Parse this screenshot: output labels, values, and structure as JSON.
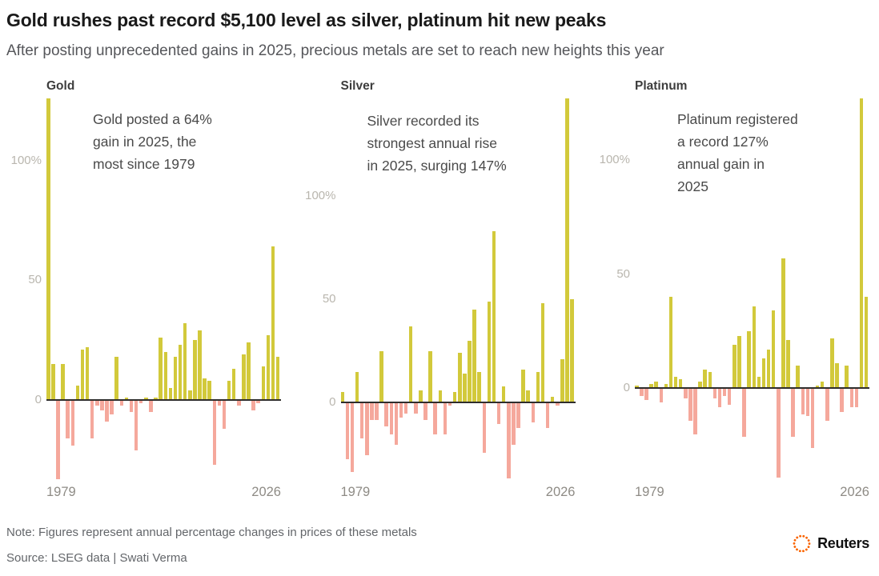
{
  "header": {
    "title": "Gold rushes past record $5,100 level as silver, platinum hit new peaks",
    "subtitle": "After posting unprecedented gains in 2025, precious metals are set to reach new heights this year"
  },
  "footer": {
    "note": "Note: Figures represent annual percentage changes in prices of these metals",
    "source": "Source: LSEG data | Swati Verma",
    "logo_text": "Reuters"
  },
  "colors": {
    "positive_bar": "#d2c93b",
    "negative_bar": "#f5a89c",
    "zero_line": "#2f2e2c",
    "tick_label": "#b9b6ae",
    "reuters_orange": "#fa6400"
  },
  "chart_data": [
    {
      "type": "bar",
      "title": "Gold",
      "annotation": "Gold posted a 64% gain in 2025, the most since 1979",
      "unit": "%",
      "x_start": 1979,
      "x_end": 2026,
      "x_labels": [
        "1979",
        "2026"
      ],
      "yticks": [
        {
          "value": 100,
          "label": "100%"
        },
        {
          "value": 50,
          "label": "50"
        },
        {
          "value": 0,
          "label": "0"
        }
      ],
      "ylim": [
        -42,
        126
      ],
      "values": [
        126,
        15,
        -33,
        15,
        -16,
        -19,
        6,
        21,
        22,
        -16,
        -2,
        -4,
        -9,
        -6,
        18,
        -2,
        1,
        -5,
        -21,
        -1,
        1,
        -5,
        1,
        26,
        20,
        5,
        18,
        23,
        32,
        4,
        25,
        29,
        9,
        8,
        -27,
        -2,
        -12,
        8,
        13,
        -2,
        19,
        24,
        -4,
        -1,
        14,
        27,
        64,
        18
      ]
    },
    {
      "type": "bar",
      "title": "Silver",
      "annotation": "Silver recorded its strongest annual rise in 2025, surging 147%",
      "unit": "%",
      "x_start": 1979,
      "x_end": 2026,
      "x_labels": [
        "1979",
        "2026"
      ],
      "yticks": [
        {
          "value": 100,
          "label": "100%"
        },
        {
          "value": 50,
          "label": "50"
        },
        {
          "value": 0,
          "label": "0"
        }
      ],
      "ylim": [
        -47,
        147
      ],
      "values": [
        5,
        -27,
        -33,
        15,
        -17,
        -25,
        -8,
        -8,
        25,
        -11,
        -15,
        -20,
        -7,
        -5,
        37,
        -5,
        6,
        -8,
        25,
        -15,
        6,
        -15,
        -1,
        5,
        24,
        14,
        30,
        45,
        15,
        -24,
        49,
        83,
        -10,
        8,
        -36,
        -20,
        -12,
        16,
        6,
        -9,
        15,
        48,
        -12,
        3,
        -1,
        21,
        147,
        50
      ]
    },
    {
      "type": "bar",
      "title": "Platinum",
      "annotation": "Platinum registered a record 127% annual gain in 2025",
      "unit": "%",
      "x_start": 1979,
      "x_end": 2026,
      "x_labels": [
        "1979",
        "2026"
      ],
      "yticks": [
        {
          "value": 100,
          "label": "100%"
        },
        {
          "value": 50,
          "label": "50"
        },
        {
          "value": 0,
          "label": "0"
        }
      ],
      "ylim": [
        -49,
        127
      ],
      "values": [
        1,
        -3,
        -5,
        2,
        3,
        -6,
        2,
        40,
        5,
        4,
        -4,
        -14,
        -20,
        3,
        8,
        7,
        -4,
        -8,
        -3,
        -7,
        19,
        23,
        -21,
        25,
        36,
        5,
        13,
        17,
        34,
        -39,
        57,
        21,
        -21,
        10,
        -11,
        -12,
        -26,
        1,
        3,
        -14,
        22,
        11,
        -10,
        10,
        -8,
        -8,
        127,
        40
      ]
    }
  ]
}
